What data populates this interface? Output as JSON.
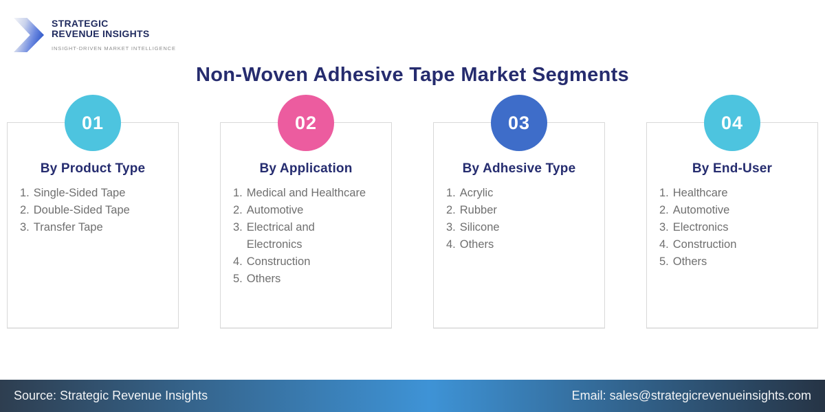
{
  "logo": {
    "name_line1": "STRATEGIC",
    "name_line2": "REVENUE INSIGHTS",
    "tagline": "INSIGHT-DRIVEN MARKET INTELLIGENCE"
  },
  "title": "Non-Woven Adhesive Tape Market Segments",
  "segments": [
    {
      "number": "01",
      "badge_color": "#4dc4df",
      "title": "By Product Type",
      "items": [
        "Single-Sided Tape",
        "Double-Sided Tape",
        "Transfer Tape"
      ]
    },
    {
      "number": "02",
      "badge_color": "#ec5c9f",
      "title": "By Application",
      "items": [
        "Medical and Healthcare",
        "Automotive",
        "Electrical and Electronics",
        "Construction",
        "Others"
      ]
    },
    {
      "number": "03",
      "badge_color": "#3e6dc9",
      "title": "By Adhesive Type",
      "items": [
        "Acrylic",
        "Rubber",
        "Silicone",
        "Others"
      ]
    },
    {
      "number": "04",
      "badge_color": "#4dc4df",
      "title": "By End-User",
      "items": [
        "Healthcare",
        "Automotive",
        "Electronics",
        "Construction",
        "Others"
      ]
    }
  ],
  "footer": {
    "source": "Source: Strategic Revenue Insights",
    "email": "Email: sales@strategicrevenueinsights.com"
  },
  "colors": {
    "accent_cyan": "#4dc4df",
    "accent_pink": "#ec5c9f",
    "accent_blue": "#3e6dc9",
    "heading_navy": "#252c6f",
    "list_gray": "#6f6f6f",
    "footer_dark_left": "#2e3e50",
    "footer_blue_mid": "#3e93d6",
    "footer_dark_right": "#263445"
  }
}
